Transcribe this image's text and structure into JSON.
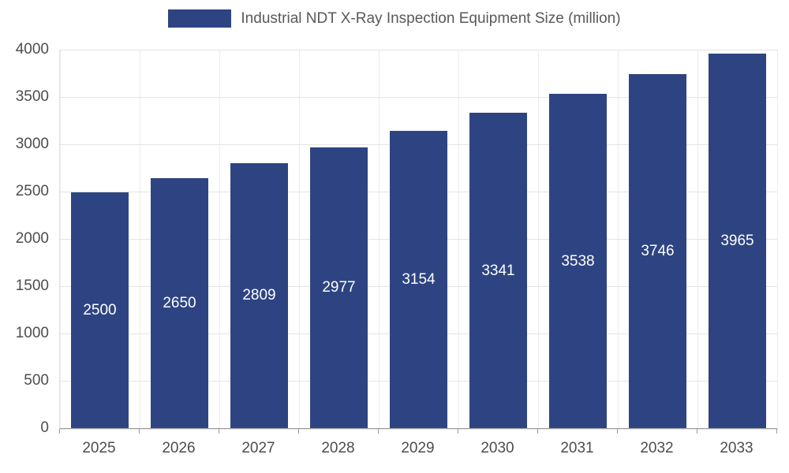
{
  "legend": {
    "label": "Industrial NDT X-Ray Inspection Equipment Size (million)"
  },
  "chart_data": {
    "type": "bar",
    "title": "Industrial NDT X-Ray Inspection Equipment Size (million)",
    "categories": [
      "2025",
      "2026",
      "2027",
      "2028",
      "2029",
      "2030",
      "2031",
      "2032",
      "2033"
    ],
    "values": [
      2500,
      2650,
      2809,
      2977,
      3154,
      3341,
      3538,
      3746,
      3965
    ],
    "xlabel": "",
    "ylabel": "",
    "ylim": [
      0,
      4000
    ],
    "yticks": [
      0,
      500,
      1000,
      1500,
      2000,
      2500,
      3000,
      3500,
      4000
    ],
    "grid": true,
    "legend_position": "top",
    "bar_color": "#2e4482",
    "value_label_color": "#ffffff",
    "axis_label_color": "#4d4d4d",
    "gridline_color": "#e4e4e4"
  }
}
